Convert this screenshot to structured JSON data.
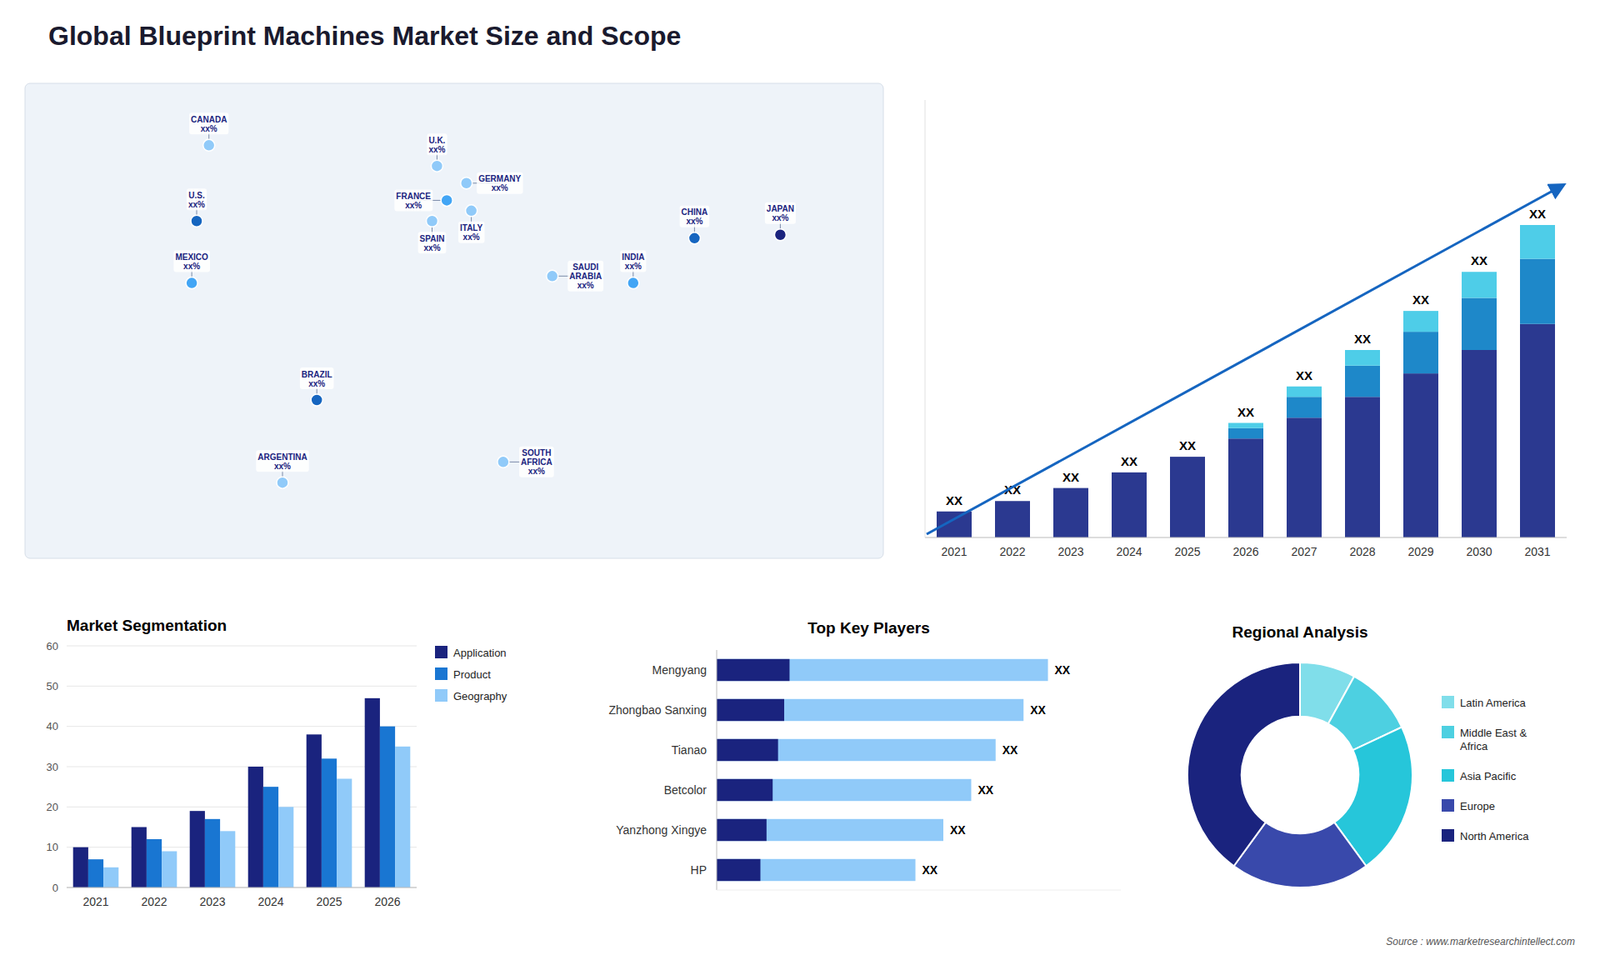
{
  "title": "Global Blueprint Machines Market Size and Scope",
  "annotations": [
    "Source : www.marketresearchintellect.com"
  ],
  "chart_data": [
    {
      "type": "map",
      "x": [
        -100,
        -95,
        -102,
        -51,
        -65,
        -2,
        2,
        -4,
        10,
        12,
        45,
        25,
        78,
        103,
        138
      ],
      "values": [
        40,
        62,
        22,
        -12,
        -36,
        56,
        46,
        40,
        51,
        43,
        24,
        -30,
        22,
        35,
        36
      ],
      "annotations": [
        "U.S.\nxx%",
        "CANADA\nxx%",
        "MEXICO\nxx%",
        "BRAZIL\nxx%",
        "ARGENTINA\nxx%",
        "U.K.\nxx%",
        "FRANCE\nxx%",
        "SPAIN\nxx%",
        "GERMANY\nxx%",
        "ITALY\nxx%",
        "SAUDI\nARABIA\nxx%",
        "SOUTH\nAFRICA\nxx%",
        "INDIA\nxx%",
        "CHINA\nxx%",
        "JAPAN\nxx%"
      ],
      "colors": [
        "#1565c0",
        "#90caf9",
        "#42a5f5",
        "#1565c0",
        "#90caf9",
        "#90caf9",
        "#42a5f5",
        "#90caf9",
        "#90caf9",
        "#90caf9",
        "#90caf9",
        "#90caf9",
        "#42a5f5",
        "#1565c0",
        "#1a237e"
      ],
      "xlim": [
        -170,
        180
      ],
      "ylim": [
        -58,
        80
      ],
      "tick_labels": false
    },
    {
      "type": "bar",
      "stacked": true,
      "categories": [
        "2021",
        "2022",
        "2023",
        "2024",
        "2025",
        "2026",
        "2027",
        "2028",
        "2029",
        "2030",
        "2031"
      ],
      "series": [
        {
          "color": "#2b3990",
          "values": [
            1.0,
            1.4,
            1.9,
            2.5,
            3.1,
            3.8,
            4.6,
            5.4,
            6.3,
            7.2,
            8.2
          ]
        },
        {
          "color": "#1e88c9",
          "values": [
            0.0,
            0.0,
            0.0,
            0.0,
            0.0,
            0.4,
            0.8,
            1.2,
            1.6,
            2.0,
            2.5
          ]
        },
        {
          "color": "#4ecde8",
          "values": [
            0.0,
            0.0,
            0.0,
            0.0,
            0.0,
            0.2,
            0.4,
            0.6,
            0.8,
            1.0,
            1.3
          ]
        }
      ],
      "annotations": [
        "XX",
        "XX",
        "XX",
        "XX",
        "XX",
        "XX",
        "XX",
        "XX",
        "XX",
        "XX",
        "XX"
      ],
      "ylim": [
        0,
        16.8
      ],
      "tick_labels": "x"
    },
    {
      "type": "bar",
      "title": "Market Segmentation",
      "categories": [
        "2021",
        "2022",
        "2023",
        "2024",
        "2025",
        "2026"
      ],
      "series": [
        {
          "name": "Application",
          "color": "#1a237e",
          "values": [
            10,
            15,
            19,
            30,
            38,
            47
          ]
        },
        {
          "name": "Product",
          "color": "#1976d2",
          "values": [
            7,
            12,
            17,
            25,
            32,
            40
          ]
        },
        {
          "name": "Geography",
          "color": "#90caf9",
          "values": [
            5,
            9,
            14,
            20,
            27,
            35
          ]
        }
      ],
      "ylim": [
        0,
        60
      ],
      "yticks": [
        0,
        10,
        20,
        30,
        40,
        50,
        60
      ],
      "grid": true,
      "legend": "right"
    },
    {
      "type": "bar",
      "orientation": "horizontal",
      "stacked": false,
      "title": "Top Key Players",
      "categories": [
        "Mengyang",
        "Zhongbao Sanxing",
        "Tianao",
        "Betcolor",
        "Yanzhong Xingye",
        "HP"
      ],
      "series": [
        {
          "color": "#90caf9",
          "values": [
            95,
            88,
            80,
            73,
            65,
            57
          ]
        },
        {
          "color": "#1a237e",
          "values": [
            20.9,
            19.36,
            17.6,
            16.06,
            14.3,
            12.54
          ]
        }
      ],
      "annotations": [
        "XX",
        "XX",
        "XX",
        "XX",
        "XX",
        "XX"
      ],
      "xlim": [
        0,
        115.9
      ],
      "tick_labels": "y"
    },
    {
      "type": "pie",
      "title": "Regional Analysis",
      "categories": [
        "Latin America",
        "Middle East &\nAfrica",
        "Asia Pacific",
        "Europe",
        "North America"
      ],
      "values": [
        8,
        10,
        22,
        20,
        40
      ],
      "colors": [
        "#80deea",
        "#4dd0e1",
        "#26c6da",
        "#3949ab",
        "#1a237e"
      ],
      "legend": "right"
    }
  ]
}
